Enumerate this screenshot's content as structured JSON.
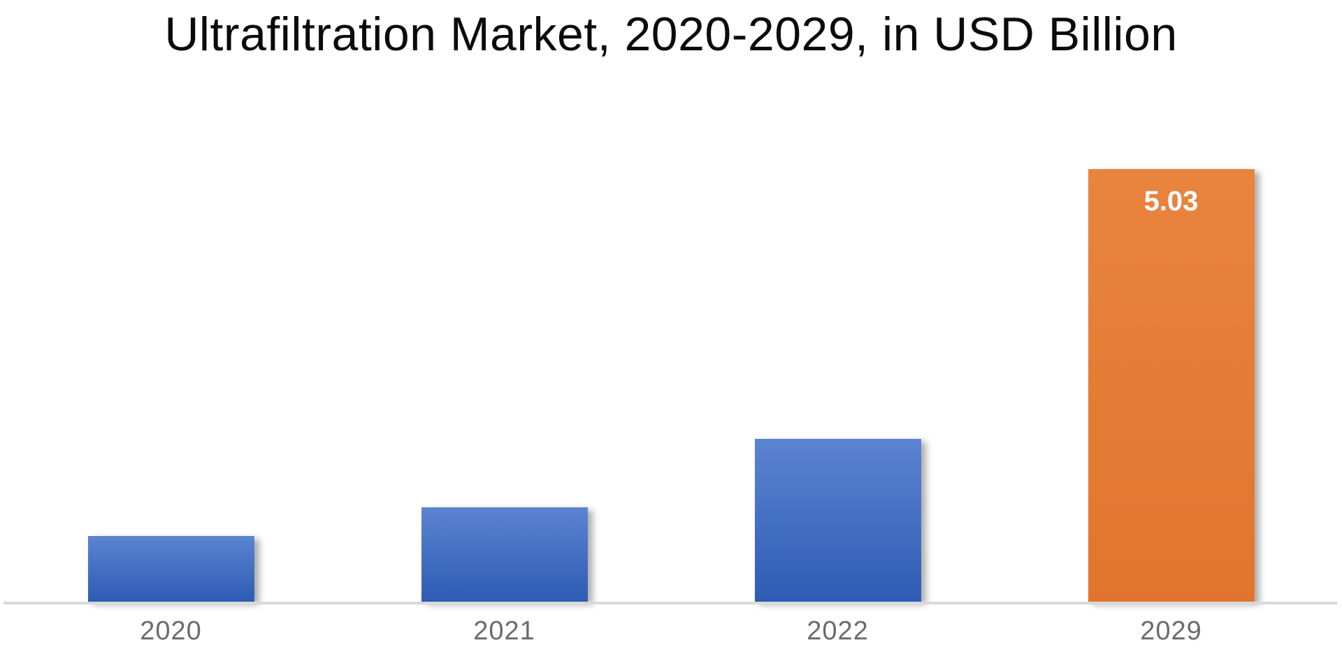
{
  "title": "Ultrafiltration Market, 2020-2029, in USD Billion",
  "colors": {
    "background": "#ffffff",
    "title_text": "#0b0b0b",
    "axis_label": "#6b6b6b",
    "axis_line": "#d9d9d9",
    "bar_blue_top": "#5b84d1",
    "bar_blue_bottom": "#2e5cb4",
    "bar_orange_top": "#e9843f",
    "bar_orange_bottom": "#e2752e",
    "value_label": "#ffffff"
  },
  "chart_data": {
    "type": "bar",
    "title": "Ultrafiltration Market, 2020-2029, in USD Billion",
    "categories": [
      "2020",
      "2021",
      "2022",
      "2029"
    ],
    "values": [
      0.76,
      1.1,
      1.89,
      5.03
    ],
    "data_labels": [
      "",
      "",
      "",
      "5.03"
    ],
    "bar_colors": [
      "blue",
      "blue",
      "blue",
      "orange"
    ],
    "highlight_index": 3,
    "xlabel": "",
    "ylabel": "",
    "ylim": [
      0,
      5.03
    ],
    "grid": false,
    "legend": false,
    "y_axis_visible": false,
    "x_axis_line": true,
    "note": "Only the 2029 bar carries a printed value (5.03); 2020-2022 values are estimated from bar heights."
  }
}
